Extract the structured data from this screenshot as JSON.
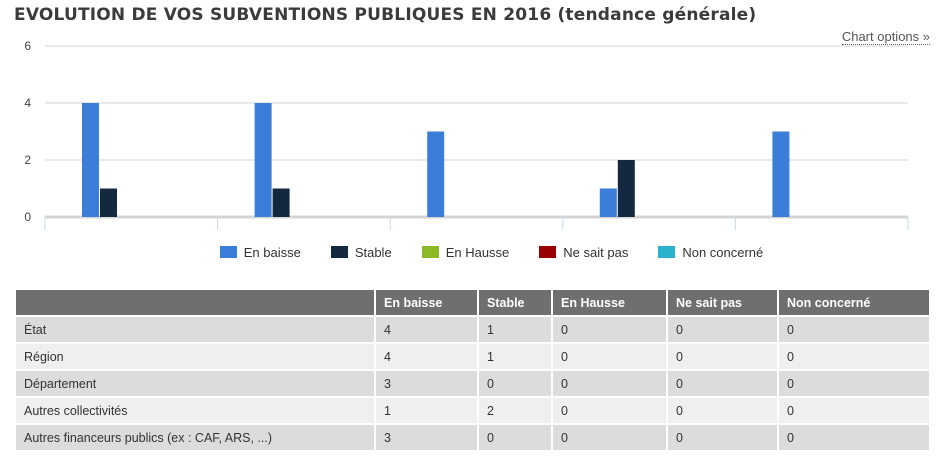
{
  "page": {
    "title": "EVOLUTION DE VOS SUBVENTIONS PUBLIQUES EN 2016 (tendance générale)",
    "chart_options_label": "Chart options »"
  },
  "colors": {
    "en_baisse": "#3a7ed9",
    "stable": "#14293f",
    "en_hausse": "#8cba25",
    "ne_sait_pas": "#990000",
    "non_concerne": "#29b2cc",
    "table_header_bg": "#6f6f6f",
    "table_row_dark_bg": "#dcdcdc",
    "table_row_light_bg": "#efefef"
  },
  "chart_data": {
    "type": "bar",
    "title": "EVOLUTION DE VOS SUBVENTIONS PUBLIQUES EN 2016 (tendance générale)",
    "categories": [
      "État",
      "Région",
      "Département",
      "Autres collectivités",
      "Autres financeurs publics (ex : CAF, ARS, ...)"
    ],
    "series": [
      {
        "name": "En baisse",
        "color": "#3a7ed9",
        "values": [
          4,
          4,
          3,
          1,
          3
        ]
      },
      {
        "name": "Stable",
        "color": "#14293f",
        "values": [
          1,
          1,
          0,
          2,
          0
        ]
      },
      {
        "name": "En Hausse",
        "color": "#8cba25",
        "values": [
          0,
          0,
          0,
          0,
          0
        ]
      },
      {
        "name": "Ne sait pas",
        "color": "#990000",
        "values": [
          0,
          0,
          0,
          0,
          0
        ]
      },
      {
        "name": "Non concerné",
        "color": "#29b2cc",
        "values": [
          0,
          0,
          0,
          0,
          0
        ]
      }
    ],
    "y_ticks": [
      0,
      2,
      4,
      6
    ],
    "ylim": [
      0,
      6
    ],
    "grid": true,
    "legend_position": "bottom",
    "x_tick_labels": "none"
  },
  "table": {
    "header": [
      "",
      "En baisse",
      "Stable",
      "En Hausse",
      "Ne sait pas",
      "Non concerné"
    ],
    "rows": [
      {
        "label": "État",
        "values": [
          4,
          1,
          0,
          0,
          0
        ]
      },
      {
        "label": "Région",
        "values": [
          4,
          1,
          0,
          0,
          0
        ]
      },
      {
        "label": "Département",
        "values": [
          3,
          0,
          0,
          0,
          0
        ]
      },
      {
        "label": "Autres collectivités",
        "values": [
          1,
          2,
          0,
          0,
          0
        ]
      },
      {
        "label": "Autres financeurs publics (ex : CAF, ARS, ...)",
        "values": [
          3,
          0,
          0,
          0,
          0
        ]
      }
    ]
  }
}
